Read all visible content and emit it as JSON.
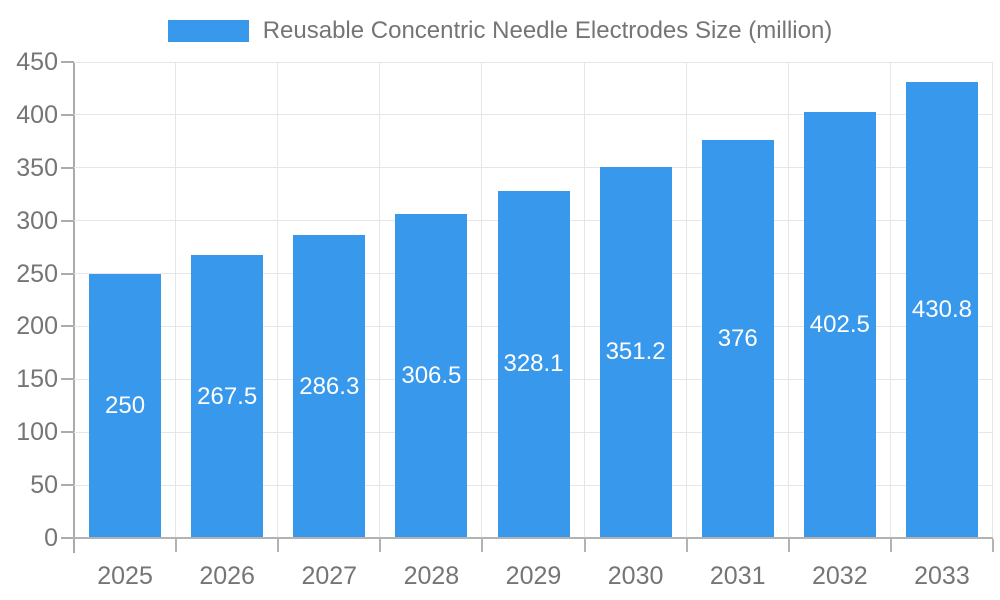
{
  "legend": {
    "label": "Reusable Concentric Needle Electrodes Size (million)",
    "swatch_color": "#3898EC"
  },
  "chart_data": {
    "type": "bar",
    "title": "Reusable Concentric Needle Electrodes Size (million)",
    "categories": [
      "2025",
      "2026",
      "2027",
      "2028",
      "2029",
      "2030",
      "2031",
      "2032",
      "2033"
    ],
    "values": [
      250,
      267.5,
      286.3,
      306.5,
      328.1,
      351.2,
      376,
      402.5,
      430.8
    ],
    "value_labels": [
      "250",
      "267.5",
      "286.3",
      "306.5",
      "328.1",
      "351.2",
      "376",
      "402.5",
      "430.8"
    ],
    "xlabel": "",
    "ylabel": "",
    "ylim": [
      0,
      450
    ],
    "yticks": [
      0,
      50,
      100,
      150,
      200,
      250,
      300,
      350,
      400,
      450
    ],
    "grid": true,
    "legend_position": "top",
    "colors": {
      "bar": "#3898EC",
      "value_label": "#FFFFFF",
      "axis_text": "#757575",
      "gridline": "#E6E6E6",
      "axis_line": "#ABABAB",
      "background": "#FFFFFF"
    }
  }
}
